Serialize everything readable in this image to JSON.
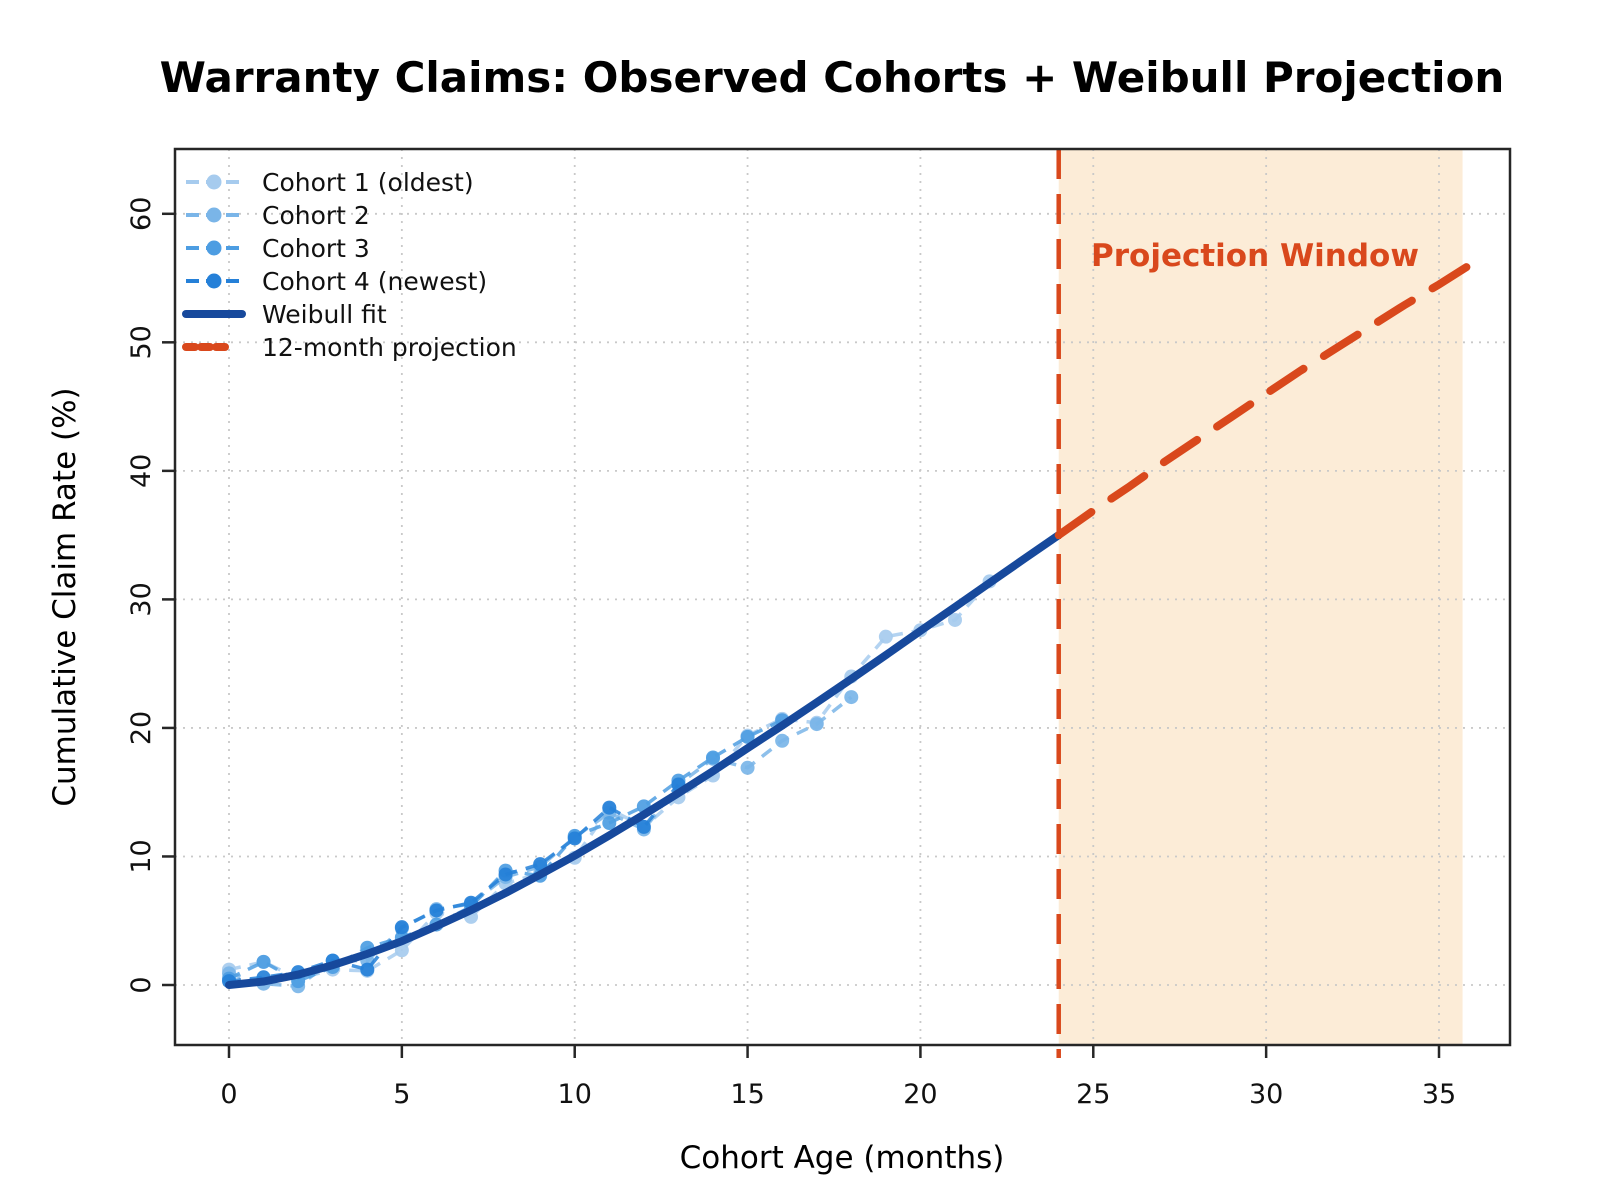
{
  "title": "Warranty Claims: Observed Cohorts + Weibull Projection",
  "chart_data": {
    "type": "line",
    "title": "Warranty Claims: Observed Cohorts + Weibull Projection",
    "xlabel": "Cohort Age (months)",
    "ylabel": "Cumulative Claim Rate (%)",
    "xticks": [
      0,
      5,
      10,
      15,
      20,
      25,
      30,
      35
    ],
    "yticks": [
      0,
      10,
      20,
      30,
      40,
      50,
      60
    ],
    "xlim": [
      -1.6,
      37.1
    ],
    "ylim": [
      -4.7,
      65.0
    ],
    "grid": true,
    "gridline_color": "#c9c9c9",
    "spine_color": "#262626",
    "legend_position": "upper-left",
    "annotation": {
      "text": "Projection Window",
      "x": 29.7,
      "y": 56.0,
      "color": "#d9481c"
    },
    "projection_window": {
      "start_month": 24,
      "end_month": 36,
      "fill": "#fcecd7",
      "vline_color": "#d9481c",
      "vline_x": 24
    },
    "weibull": {
      "shape": 1.6,
      "scale_months": 40.6
    },
    "series": [
      {
        "name": "Cohort 1 (oldest)",
        "role": "cohort",
        "color": "#a6cbee",
        "x": [
          0,
          1,
          2,
          3,
          4,
          5,
          6,
          7,
          8,
          9,
          10,
          11,
          12,
          13,
          14,
          15,
          16,
          17,
          18,
          19,
          20,
          21,
          22
        ],
        "y": [
          1.2,
          1.8,
          0.5,
          1.2,
          1.1,
          2.7,
          5.6,
          5.3,
          7.9,
          8.7,
          9.9,
          13.7,
          12.3,
          14.6,
          16.3,
          19.4,
          20.7,
          20.4,
          24.0,
          27.1,
          27.6,
          28.4,
          31.4
        ]
      },
      {
        "name": "Cohort 2",
        "role": "cohort",
        "color": "#7ab5e8",
        "x": [
          0,
          1,
          2,
          3,
          4,
          5,
          6,
          7,
          8,
          9,
          10,
          11,
          12,
          13,
          14,
          15,
          16,
          17,
          18
        ],
        "y": [
          0.9,
          0.1,
          -0.1,
          1.9,
          1.9,
          4.4,
          5.9,
          6.3,
          8.4,
          9.2,
          11.5,
          13.4,
          12.1,
          15.6,
          17.6,
          16.9,
          19.0,
          20.3,
          22.4
        ]
      },
      {
        "name": "Cohort 3",
        "role": "cohort",
        "color": "#4d9de2",
        "x": [
          0,
          1,
          2,
          3,
          4,
          5,
          6,
          7,
          8,
          9,
          10,
          11,
          12,
          13,
          14,
          15,
          16
        ],
        "y": [
          0.5,
          1.8,
          0.3,
          1.4,
          2.9,
          3.7,
          4.7,
          6.1,
          8.9,
          8.5,
          11.6,
          12.6,
          13.9,
          15.9,
          17.7,
          19.3,
          20.6
        ]
      },
      {
        "name": "Cohort 4 (newest)",
        "role": "cohort",
        "color": "#2580d8",
        "x": [
          0,
          1,
          2,
          3,
          4,
          5,
          6,
          7,
          8,
          9,
          10,
          11,
          12,
          13
        ],
        "y": [
          0.3,
          0.6,
          1.0,
          1.9,
          1.2,
          4.5,
          5.8,
          6.4,
          8.6,
          9.4,
          11.4,
          13.8,
          12.3,
          15.6
        ]
      },
      {
        "name": "Weibull fit",
        "role": "fit",
        "color": "#17499c",
        "x": [
          0,
          1,
          2,
          3,
          4,
          5,
          6,
          7,
          8,
          9,
          10,
          11,
          12,
          13,
          14,
          15,
          16,
          17,
          18,
          19,
          20,
          21,
          22,
          23,
          24
        ],
        "y": [
          0,
          0.27,
          0.81,
          1.54,
          2.42,
          3.41,
          4.58,
          5.82,
          7.16,
          8.59,
          10.06,
          11.64,
          13.26,
          14.93,
          16.64,
          18.42,
          20.18,
          21.99,
          23.81,
          25.67,
          27.55,
          29.41,
          31.28,
          33.15,
          35.0
        ]
      },
      {
        "name": "12-month projection",
        "role": "projection",
        "color": "#d9481c",
        "x": [
          24,
          25,
          26,
          27,
          28,
          29,
          30,
          31,
          32,
          33,
          34,
          35,
          36
        ],
        "y": [
          35.0,
          36.9,
          38.7,
          40.6,
          42.4,
          44.2,
          46.0,
          47.8,
          49.5,
          51.2,
          52.9,
          54.5,
          56.2
        ]
      }
    ],
    "legend": [
      "Cohort 1 (oldest)",
      "Cohort 2",
      "Cohort 3",
      "Cohort 4 (newest)",
      "Weibull fit",
      "12-month projection"
    ]
  }
}
